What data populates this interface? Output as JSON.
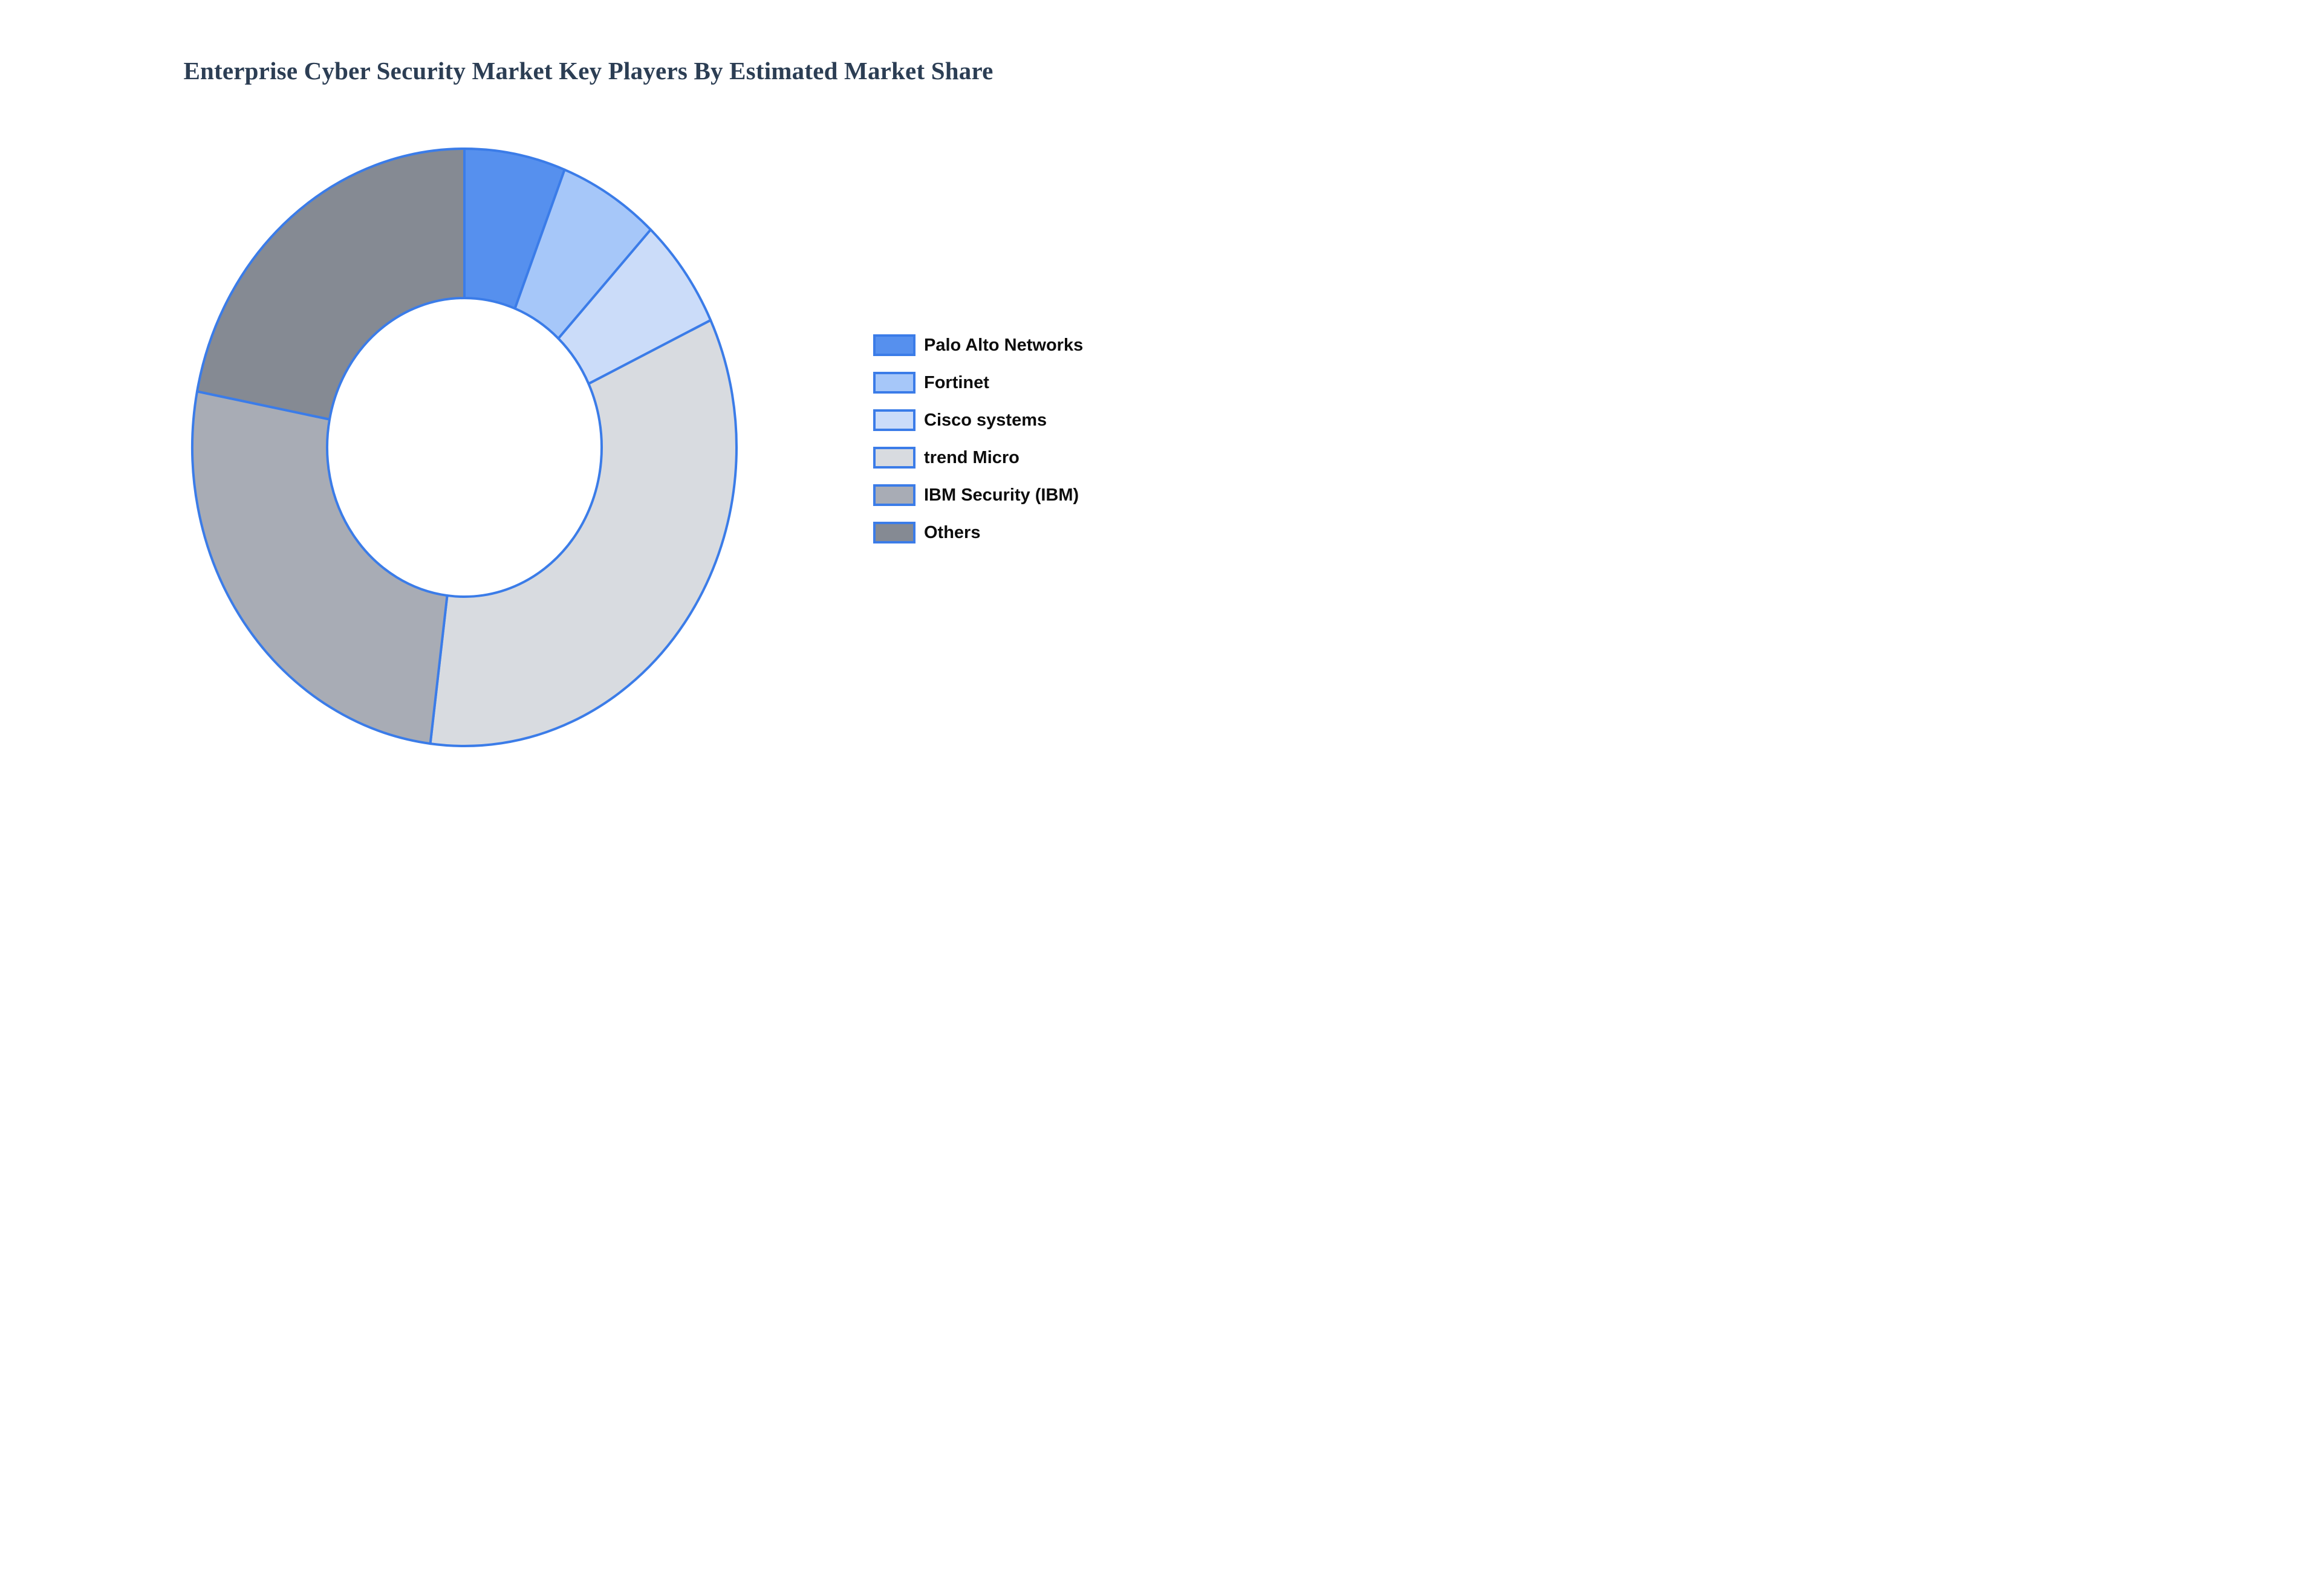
{
  "title": {
    "text": "Enterprise Cyber Security Market Key Players By Estimated Market Share",
    "color": "#2C3E54"
  },
  "background_color": "#FFFFFF",
  "chart_data": {
    "type": "pie",
    "subtype": "donut",
    "title": "Enterprise Cyber Security Market Key Players By Estimated Market Share",
    "categories": [
      "Palo Alto Networks",
      "Fortinet",
      "Cisco systems",
      "trend Micro",
      "IBM Security (IBM)",
      "Others"
    ],
    "values": [
      6,
      6,
      6,
      34,
      26,
      22
    ],
    "values_are_percent_estimates": true,
    "slice_colors": [
      "#5690EE",
      "#A6C7F9",
      "#CBDCF9",
      "#D8DBE0",
      "#A8ACB5",
      "#858A93"
    ],
    "stroke_color": "#3B7CE8",
    "donut_hole_ratio": 0.5,
    "start_angle_deg": 0,
    "direction": "clockwise",
    "legend_position": "right",
    "data_labels_shown": false
  },
  "legend": {
    "items": [
      {
        "label": "Palo Alto Networks",
        "color": "#5690EE"
      },
      {
        "label": "Fortinet",
        "color": "#A6C7F9"
      },
      {
        "label": "Cisco systems",
        "color": "#CBDCF9"
      },
      {
        "label": "trend Micro",
        "color": "#D8DBE0"
      },
      {
        "label": "IBM Security (IBM)",
        "color": "#A8ACB5"
      },
      {
        "label": "Others",
        "color": "#858A93"
      }
    ]
  }
}
